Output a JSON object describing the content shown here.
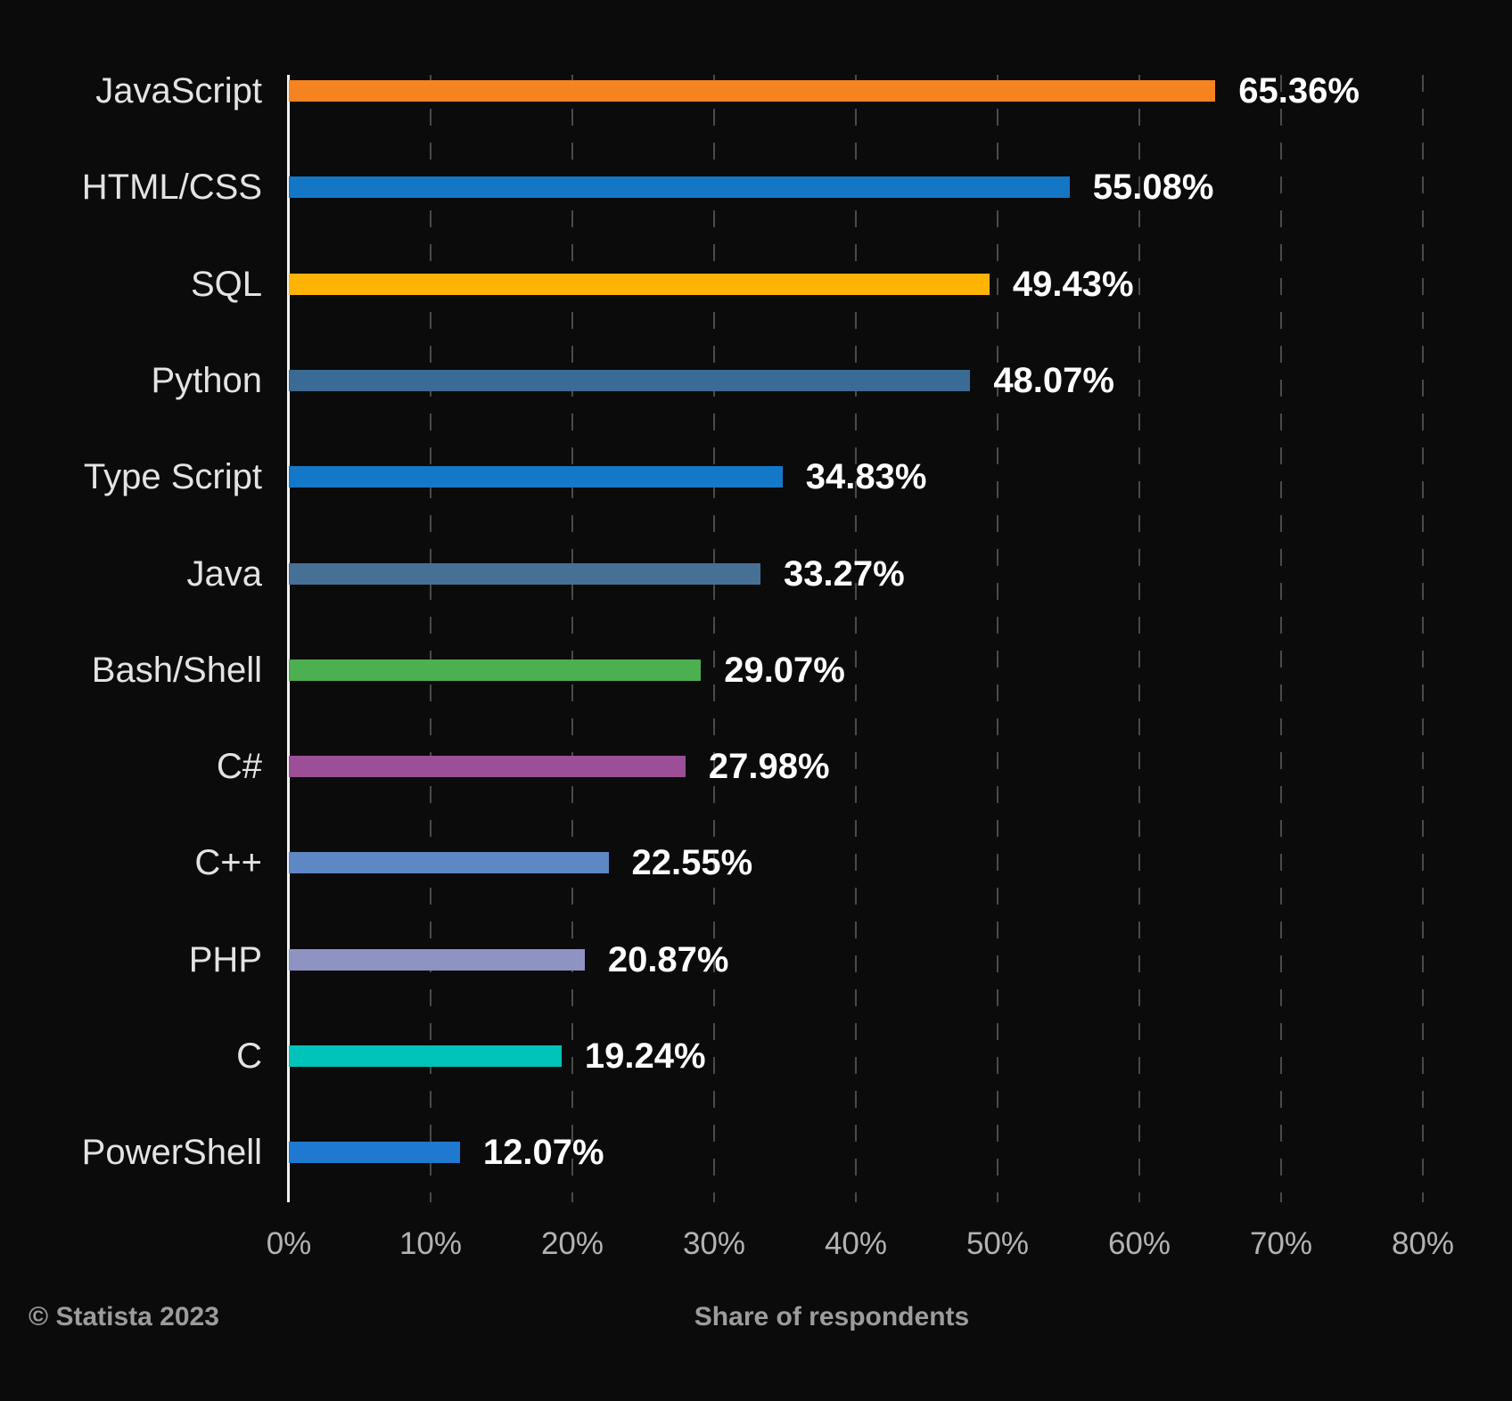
{
  "chart_data": {
    "type": "bar",
    "orientation": "horizontal",
    "title": "",
    "xlabel": "Share of respondents",
    "xlim": [
      0,
      80
    ],
    "x_ticks": [
      "0%",
      "10%",
      "20%",
      "30%",
      "40%",
      "50%",
      "60%",
      "70%",
      "80%"
    ],
    "grid": "vertical dashed gridlines at each 10% tick",
    "legend": "none",
    "categories": [
      "JavaScript",
      "HTML/CSS",
      "SQL",
      "Python",
      "Type Script",
      "Java",
      "Bash/Shell",
      "C#",
      "C++",
      "PHP",
      "C",
      "PowerShell"
    ],
    "values": [
      65.36,
      55.08,
      49.43,
      48.07,
      34.83,
      33.27,
      29.07,
      27.98,
      22.55,
      20.87,
      19.24,
      12.07
    ],
    "value_labels": [
      "65.36%",
      "55.08%",
      "49.43%",
      "48.07%",
      "34.83%",
      "33.27%",
      "29.07%",
      "27.98%",
      "22.55%",
      "20.87%",
      "19.24%",
      "12.07%"
    ],
    "bar_colors": [
      "#F5831F",
      "#1377C6",
      "#FFB405",
      "#3A6B94",
      "#1478C9",
      "#477095",
      "#4CAF50",
      "#9C4E97",
      "#5E88C4",
      "#8E93C4",
      "#00C4BA",
      "#2079D0"
    ]
  },
  "footer": {
    "copyright": "© Statista 2023"
  },
  "colors": {
    "background": "#0B0B0C",
    "axis": "#F2F2F2",
    "gridline": "#4A4A4A",
    "category_label": "#E3E3E3",
    "value_label": "#FFFFFF",
    "tick_label": "#B3B3B3",
    "footer_text": "#9C9C9C"
  }
}
